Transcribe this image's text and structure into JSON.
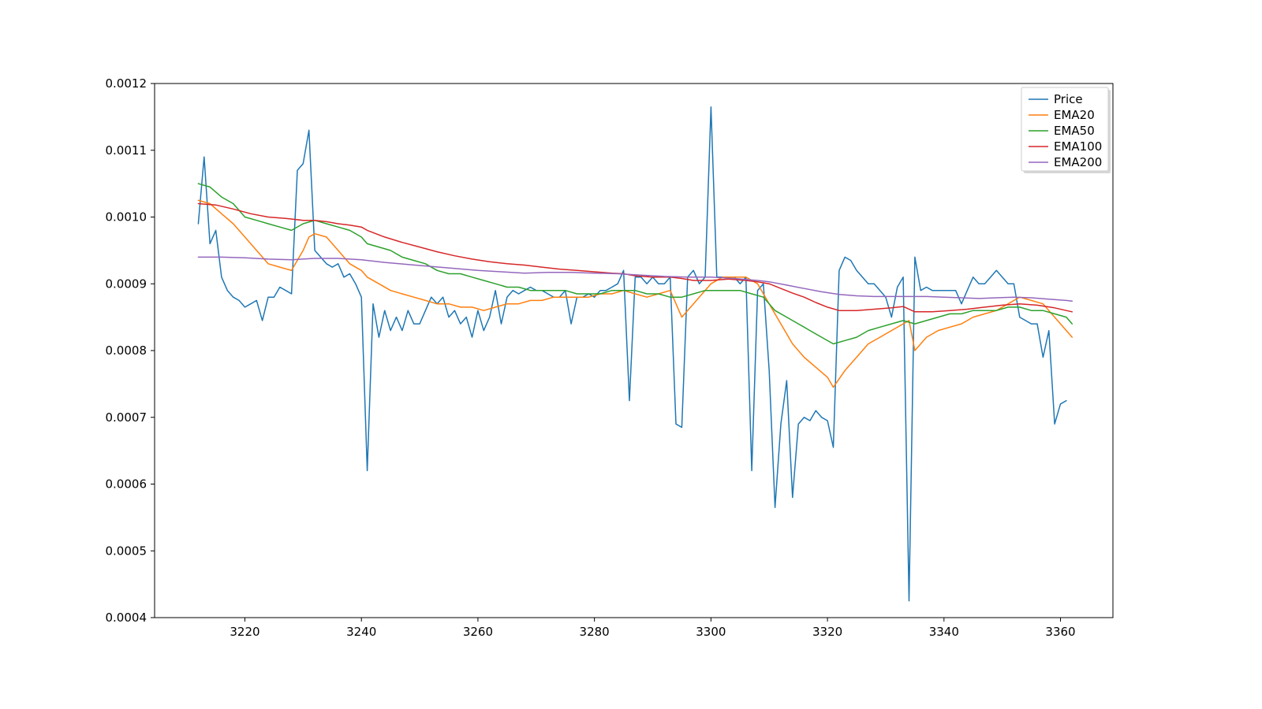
{
  "figure": {
    "background": "#ffffff",
    "plot_border_color": "#000000",
    "tick_color": "#000000"
  },
  "chart_data": {
    "type": "line",
    "title": "",
    "xlabel": "",
    "ylabel": "",
    "grid": false,
    "xlim": [
      3204.5,
      3369.0
    ],
    "ylim": [
      0.0004,
      0.0012
    ],
    "x_ticks": {
      "values": [
        3220,
        3240,
        3260,
        3280,
        3300,
        3320,
        3340,
        3360
      ],
      "labels": [
        "3220",
        "3240",
        "3260",
        "3280",
        "3300",
        "3320",
        "3340",
        "3360"
      ]
    },
    "y_ticks": {
      "values": [
        0.0004,
        0.0005,
        0.0006,
        0.0007,
        0.0008,
        0.0009,
        0.001,
        0.0011,
        0.0012
      ],
      "labels": [
        "0.0004",
        "0.0005",
        "0.0006",
        "0.0007",
        "0.0008",
        "0.0009",
        "0.0010",
        "0.0011",
        "0.0012"
      ]
    },
    "legend": {
      "position": "upper right",
      "entries": [
        "Price",
        "EMA20",
        "EMA50",
        "EMA100",
        "EMA200"
      ],
      "border_color": "#cccccc",
      "background": "#ffffff"
    },
    "series": [
      {
        "name": "Price",
        "color": "#1f77b4",
        "x": [
          3212,
          3213,
          3214,
          3215,
          3216,
          3217,
          3218,
          3219,
          3220,
          3221,
          3222,
          3223,
          3224,
          3225,
          3226,
          3227,
          3228,
          3229,
          3230,
          3231,
          3232,
          3233,
          3234,
          3235,
          3236,
          3237,
          3238,
          3239,
          3240,
          3241,
          3242,
          3243,
          3244,
          3245,
          3246,
          3247,
          3248,
          3249,
          3250,
          3251,
          3252,
          3253,
          3254,
          3255,
          3256,
          3257,
          3258,
          3259,
          3260,
          3261,
          3262,
          3263,
          3264,
          3265,
          3266,
          3267,
          3268,
          3269,
          3270,
          3271,
          3272,
          3273,
          3274,
          3275,
          3276,
          3277,
          3278,
          3279,
          3280,
          3281,
          3282,
          3283,
          3284,
          3285,
          3286,
          3287,
          3288,
          3289,
          3290,
          3291,
          3292,
          3293,
          3294,
          3295,
          3296,
          3297,
          3298,
          3299,
          3300,
          3301,
          3302,
          3303,
          3304,
          3305,
          3306,
          3307,
          3308,
          3309,
          3310,
          3311,
          3312,
          3313,
          3314,
          3315,
          3316,
          3317,
          3318,
          3319,
          3320,
          3321,
          3322,
          3323,
          3324,
          3325,
          3326,
          3327,
          3328,
          3329,
          3330,
          3331,
          3332,
          3333,
          3334,
          3335,
          3336,
          3337,
          3338,
          3339,
          3340,
          3341,
          3342,
          3343,
          3344,
          3345,
          3346,
          3347,
          3348,
          3349,
          3350,
          3351,
          3352,
          3353,
          3354,
          3355,
          3356,
          3357,
          3358,
          3359,
          3360,
          3361
        ],
        "y": [
          0.00099,
          0.00109,
          0.00096,
          0.00098,
          0.00091,
          0.00089,
          0.00088,
          0.000875,
          0.000865,
          0.00087,
          0.000875,
          0.000845,
          0.00088,
          0.00088,
          0.000895,
          0.00089,
          0.000885,
          0.00107,
          0.00108,
          0.00113,
          0.00095,
          0.00094,
          0.00093,
          0.000925,
          0.00093,
          0.00091,
          0.000915,
          0.0009,
          0.00088,
          0.00062,
          0.00087,
          0.00082,
          0.00086,
          0.00083,
          0.00085,
          0.00083,
          0.00086,
          0.00084,
          0.00084,
          0.00086,
          0.00088,
          0.00087,
          0.00088,
          0.00085,
          0.00086,
          0.00084,
          0.00085,
          0.00082,
          0.00086,
          0.00083,
          0.00085,
          0.00089,
          0.00084,
          0.00088,
          0.00089,
          0.000885,
          0.00089,
          0.000895,
          0.00089,
          0.00089,
          0.000885,
          0.00088,
          0.00088,
          0.00089,
          0.00084,
          0.00088,
          0.00088,
          0.000885,
          0.00088,
          0.00089,
          0.00089,
          0.000895,
          0.0009,
          0.00092,
          0.000725,
          0.00091,
          0.00091,
          0.0009,
          0.00091,
          0.0009,
          0.0009,
          0.00091,
          0.00069,
          0.000685,
          0.00091,
          0.00092,
          0.0009,
          0.00091,
          0.001165,
          0.00091,
          0.00091,
          0.00091,
          0.00091,
          0.0009,
          0.00091,
          0.00062,
          0.00089,
          0.0009,
          0.00077,
          0.000565,
          0.00069,
          0.000755,
          0.00058,
          0.00069,
          0.0007,
          0.000695,
          0.00071,
          0.0007,
          0.000695,
          0.000655,
          0.00092,
          0.00094,
          0.000935,
          0.00092,
          0.00091,
          0.0009,
          0.0009,
          0.00089,
          0.00088,
          0.00085,
          0.000895,
          0.00091,
          0.000425,
          0.00094,
          0.00089,
          0.000895,
          0.00089,
          0.00089,
          0.00089,
          0.00089,
          0.00089,
          0.00087,
          0.00089,
          0.00091,
          0.0009,
          0.0009,
          0.00091,
          0.00092,
          0.00091,
          0.0009,
          0.0009,
          0.00085,
          0.000845,
          0.00084,
          0.00084,
          0.00079,
          0.00083,
          0.00069,
          0.00072,
          0.000725
        ]
      },
      {
        "name": "EMA20",
        "color": "#ff7f0e",
        "x": [
          3212,
          3214,
          3216,
          3218,
          3220,
          3222,
          3224,
          3226,
          3228,
          3230,
          3231,
          3232,
          3234,
          3236,
          3238,
          3240,
          3241,
          3243,
          3245,
          3247,
          3249,
          3251,
          3253,
          3255,
          3257,
          3259,
          3261,
          3263,
          3265,
          3267,
          3269,
          3271,
          3273,
          3275,
          3277,
          3279,
          3281,
          3283,
          3285,
          3287,
          3289,
          3291,
          3293,
          3295,
          3297,
          3299,
          3300,
          3302,
          3304,
          3306,
          3308,
          3310,
          3312,
          3314,
          3316,
          3318,
          3320,
          3321,
          3323,
          3325,
          3327,
          3329,
          3331,
          3333,
          3334,
          3335,
          3337,
          3339,
          3341,
          3343,
          3345,
          3347,
          3349,
          3351,
          3353,
          3355,
          3357,
          3359,
          3361,
          3362
        ],
        "y": [
          0.001025,
          0.00102,
          0.001005,
          0.00099,
          0.00097,
          0.00095,
          0.00093,
          0.000925,
          0.00092,
          0.00095,
          0.00097,
          0.000975,
          0.00097,
          0.00095,
          0.00093,
          0.00092,
          0.00091,
          0.0009,
          0.00089,
          0.000885,
          0.00088,
          0.000875,
          0.00087,
          0.00087,
          0.000865,
          0.000865,
          0.00086,
          0.000865,
          0.00087,
          0.00087,
          0.000875,
          0.000875,
          0.00088,
          0.00088,
          0.00088,
          0.00088,
          0.000885,
          0.000885,
          0.00089,
          0.000885,
          0.00088,
          0.000885,
          0.00089,
          0.00085,
          0.00087,
          0.00089,
          0.0009,
          0.00091,
          0.00091,
          0.00091,
          0.0009,
          0.00087,
          0.00084,
          0.00081,
          0.00079,
          0.000775,
          0.00076,
          0.000745,
          0.00077,
          0.00079,
          0.00081,
          0.00082,
          0.00083,
          0.00084,
          0.000845,
          0.0008,
          0.00082,
          0.00083,
          0.000835,
          0.00084,
          0.00085,
          0.000855,
          0.00086,
          0.00087,
          0.00088,
          0.000875,
          0.00087,
          0.00085,
          0.00083,
          0.00082
        ]
      },
      {
        "name": "EMA50",
        "color": "#2ca02c",
        "x": [
          3212,
          3214,
          3216,
          3218,
          3220,
          3222,
          3224,
          3226,
          3228,
          3230,
          3232,
          3234,
          3236,
          3238,
          3240,
          3241,
          3243,
          3245,
          3247,
          3249,
          3251,
          3253,
          3255,
          3257,
          3259,
          3261,
          3263,
          3265,
          3267,
          3269,
          3271,
          3273,
          3275,
          3277,
          3279,
          3281,
          3283,
          3285,
          3287,
          3289,
          3291,
          3293,
          3295,
          3297,
          3299,
          3301,
          3303,
          3305,
          3307,
          3309,
          3311,
          3313,
          3315,
          3317,
          3319,
          3321,
          3323,
          3325,
          3327,
          3329,
          3331,
          3333,
          3335,
          3337,
          3339,
          3341,
          3343,
          3345,
          3347,
          3349,
          3351,
          3353,
          3355,
          3357,
          3359,
          3361,
          3362
        ],
        "y": [
          0.00105,
          0.001045,
          0.00103,
          0.00102,
          0.001,
          0.000995,
          0.00099,
          0.000985,
          0.00098,
          0.00099,
          0.000995,
          0.00099,
          0.000985,
          0.00098,
          0.00097,
          0.00096,
          0.000955,
          0.00095,
          0.00094,
          0.000935,
          0.00093,
          0.00092,
          0.000915,
          0.000915,
          0.00091,
          0.000905,
          0.0009,
          0.000895,
          0.000895,
          0.00089,
          0.00089,
          0.00089,
          0.00089,
          0.000885,
          0.000885,
          0.000885,
          0.00089,
          0.00089,
          0.00089,
          0.000885,
          0.000885,
          0.00088,
          0.00088,
          0.000885,
          0.00089,
          0.00089,
          0.00089,
          0.00089,
          0.000885,
          0.00088,
          0.00086,
          0.00085,
          0.00084,
          0.00083,
          0.00082,
          0.00081,
          0.000815,
          0.00082,
          0.00083,
          0.000835,
          0.00084,
          0.000845,
          0.00084,
          0.000845,
          0.00085,
          0.000855,
          0.000855,
          0.00086,
          0.00086,
          0.00086,
          0.000865,
          0.000865,
          0.00086,
          0.00086,
          0.000855,
          0.00085,
          0.00084
        ]
      },
      {
        "name": "EMA100",
        "color": "#d62728",
        "x": [
          3212,
          3215,
          3218,
          3221,
          3224,
          3227,
          3230,
          3232,
          3234,
          3236,
          3238,
          3240,
          3241,
          3244,
          3247,
          3250,
          3253,
          3256,
          3259,
          3262,
          3265,
          3268,
          3271,
          3274,
          3277,
          3280,
          3283,
          3285,
          3287,
          3290,
          3293,
          3295,
          3297,
          3300,
          3303,
          3306,
          3308,
          3310,
          3312,
          3314,
          3316,
          3318,
          3320,
          3322,
          3325,
          3328,
          3331,
          3333,
          3335,
          3338,
          3341,
          3344,
          3347,
          3350,
          3353,
          3356,
          3359,
          3361,
          3362
        ],
        "y": [
          0.00102,
          0.001018,
          0.001012,
          0.001005,
          0.001,
          0.000998,
          0.000995,
          0.000995,
          0.000993,
          0.00099,
          0.000988,
          0.000985,
          0.00098,
          0.00097,
          0.000962,
          0.000955,
          0.000948,
          0.000942,
          0.000937,
          0.000933,
          0.00093,
          0.000928,
          0.000925,
          0.000922,
          0.00092,
          0.000918,
          0.000916,
          0.000915,
          0.000912,
          0.00091,
          0.00091,
          0.000908,
          0.000905,
          0.000905,
          0.000907,
          0.000905,
          0.000903,
          0.0009,
          0.000893,
          0.000886,
          0.00088,
          0.000872,
          0.000865,
          0.00086,
          0.00086,
          0.000862,
          0.000864,
          0.000866,
          0.000858,
          0.000858,
          0.00086,
          0.000862,
          0.000865,
          0.000868,
          0.00087,
          0.000868,
          0.000864,
          0.00086,
          0.000858
        ]
      },
      {
        "name": "EMA200",
        "color": "#9467bd",
        "x": [
          3212,
          3216,
          3220,
          3224,
          3228,
          3232,
          3236,
          3240,
          3244,
          3248,
          3252,
          3256,
          3260,
          3264,
          3268,
          3272,
          3276,
          3280,
          3284,
          3288,
          3292,
          3296,
          3300,
          3304,
          3308,
          3310,
          3313,
          3316,
          3319,
          3322,
          3325,
          3328,
          3331,
          3334,
          3337,
          3340,
          3343,
          3346,
          3349,
          3352,
          3355,
          3358,
          3361,
          3362
        ],
        "y": [
          0.00094,
          0.00094,
          0.000939,
          0.000937,
          0.000936,
          0.000938,
          0.000938,
          0.000936,
          0.000932,
          0.000929,
          0.000926,
          0.000923,
          0.00092,
          0.000918,
          0.000916,
          0.000917,
          0.000917,
          0.000916,
          0.000915,
          0.000913,
          0.000911,
          0.00091,
          0.00091,
          0.000908,
          0.000905,
          0.000903,
          0.000898,
          0.000893,
          0.000888,
          0.000884,
          0.000882,
          0.000881,
          0.000881,
          0.000881,
          0.000881,
          0.00088,
          0.000879,
          0.000878,
          0.000879,
          0.00088,
          0.000879,
          0.000877,
          0.000875,
          0.000874
        ]
      }
    ]
  }
}
